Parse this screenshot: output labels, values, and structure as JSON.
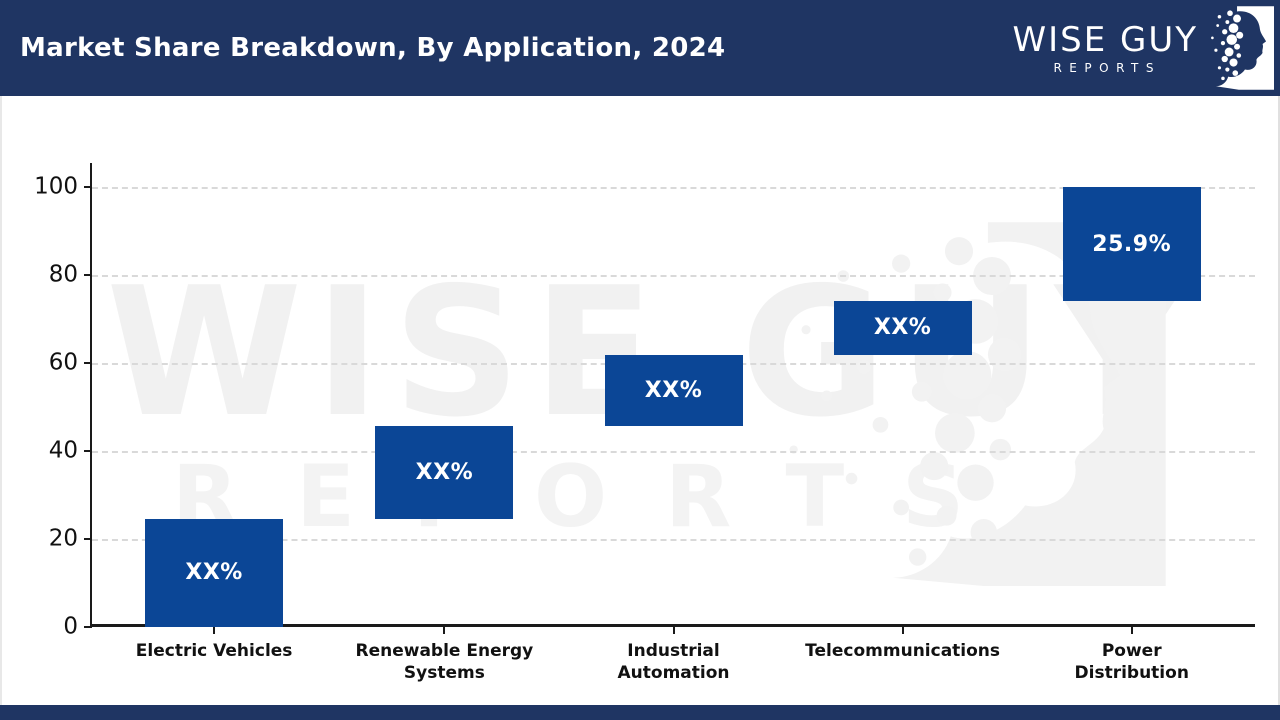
{
  "header": {
    "title": "Market Share Breakdown, By Application, 2024",
    "brand": {
      "name": "WISE GUY",
      "tagline": "REPORTS"
    }
  },
  "watermark": {
    "name": "WISE GUY",
    "tagline": "REPORTS"
  },
  "colors": {
    "header_bg": "#1f3563",
    "footer_bg": "#1f3563",
    "bar_fill": "#0b4696",
    "bar_label_text": "#ffffff",
    "gridline": "#d9d9d9",
    "axis": "#1a1a1a",
    "tick_text": "#111111",
    "watermark": "#f1f1f1"
  },
  "icons": {
    "brand_face": "dotted-face-profile",
    "watermark_face": "dotted-face-profile"
  },
  "chart_data": {
    "type": "bar",
    "variant": "floating-waterfall",
    "title": "Market Share Breakdown, By Application, 2024",
    "xlabel": "",
    "ylabel": "",
    "categories": [
      "Electric Vehicles",
      "Renewable Energy\nSystems",
      "Industrial\nAutomation",
      "Telecommunications",
      "Power Distribution"
    ],
    "bars": [
      {
        "category": "Electric Vehicles",
        "data_label": "XX%",
        "start": 0,
        "end": 24.6
      },
      {
        "category": "Renewable Energy Systems",
        "data_label": "XX%",
        "start": 24.6,
        "end": 45.6
      },
      {
        "category": "Industrial Automation",
        "data_label": "XX%",
        "start": 45.6,
        "end": 61.9
      },
      {
        "category": "Telecommunications",
        "data_label": "XX%",
        "start": 61.9,
        "end": 74.1
      },
      {
        "category": "Power Distribution",
        "data_label": "25.9%",
        "start": 74.1,
        "end": 100
      }
    ],
    "center_fractions": [
      0.105,
      0.303,
      0.5,
      0.697,
      0.894
    ],
    "yticks": [
      0,
      20,
      40,
      60,
      80,
      100
    ],
    "ylim": [
      0,
      105.5
    ],
    "grid": "horizontal-dashed",
    "legend": "none"
  }
}
